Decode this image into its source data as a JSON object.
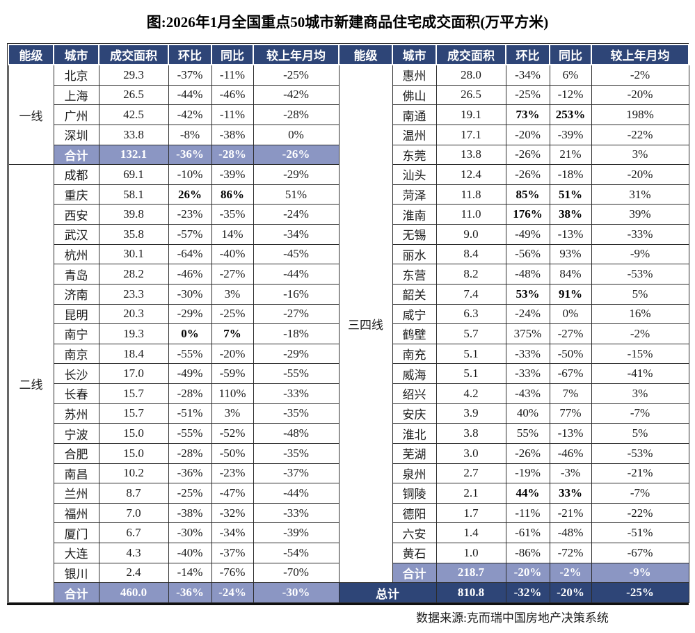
{
  "title": "图:2026年1月全国重点50城市新建商品住宅成交面积(万平方米)",
  "footer": "数据来源:克而瑞中国房地产决策系统",
  "columns": [
    "能级",
    "城市",
    "成交面积",
    "环比",
    "同比",
    "较上年月均"
  ],
  "colors": {
    "header_bg": "#2e4577",
    "header_text": "#ffffff",
    "subtotal_bg": "#8b96c3",
    "total_bg": "#2e4577",
    "grid": "#2b2b2b"
  },
  "left_table": {
    "tiers": [
      {
        "tier": "一线",
        "cities": [
          {
            "city": "北京",
            "area": "29.3",
            "mom": "-37%",
            "yoy": "-11%",
            "vs": "-25%"
          },
          {
            "city": "上海",
            "area": "26.5",
            "mom": "-44%",
            "yoy": "-46%",
            "vs": "-42%"
          },
          {
            "city": "广州",
            "area": "42.5",
            "mom": "-42%",
            "yoy": "-11%",
            "vs": "-28%"
          },
          {
            "city": "深圳",
            "area": "33.8",
            "mom": "-8%",
            "yoy": "-38%",
            "vs": "0%"
          }
        ],
        "subtotal": {
          "label": "合计",
          "area": "132.1",
          "mom": "-36%",
          "yoy": "-28%",
          "vs": "-26%"
        }
      },
      {
        "tier": "二线",
        "cities": [
          {
            "city": "成都",
            "area": "69.1",
            "mom": "-10%",
            "yoy": "-39%",
            "vs": "-29%"
          },
          {
            "city": "重庆",
            "area": "58.1",
            "mom": "26%",
            "yoy": "86%",
            "vs": "51%",
            "bold": [
              "mom",
              "yoy"
            ]
          },
          {
            "city": "西安",
            "area": "39.8",
            "mom": "-23%",
            "yoy": "-35%",
            "vs": "-24%"
          },
          {
            "city": "武汉",
            "area": "35.8",
            "mom": "-57%",
            "yoy": "14%",
            "vs": "-34%"
          },
          {
            "city": "杭州",
            "area": "30.1",
            "mom": "-64%",
            "yoy": "-40%",
            "vs": "-45%"
          },
          {
            "city": "青岛",
            "area": "28.2",
            "mom": "-46%",
            "yoy": "-27%",
            "vs": "-44%"
          },
          {
            "city": "济南",
            "area": "23.3",
            "mom": "-30%",
            "yoy": "3%",
            "vs": "-16%"
          },
          {
            "city": "昆明",
            "area": "20.3",
            "mom": "-29%",
            "yoy": "-25%",
            "vs": "-27%"
          },
          {
            "city": "南宁",
            "area": "19.3",
            "mom": "0%",
            "yoy": "7%",
            "vs": "-18%",
            "bold": [
              "mom",
              "yoy"
            ]
          },
          {
            "city": "南京",
            "area": "18.4",
            "mom": "-55%",
            "yoy": "-20%",
            "vs": "-29%"
          },
          {
            "city": "长沙",
            "area": "17.0",
            "mom": "-49%",
            "yoy": "-59%",
            "vs": "-55%"
          },
          {
            "city": "长春",
            "area": "15.7",
            "mom": "-28%",
            "yoy": "110%",
            "vs": "-33%"
          },
          {
            "city": "苏州",
            "area": "15.7",
            "mom": "-51%",
            "yoy": "3%",
            "vs": "-35%"
          },
          {
            "city": "宁波",
            "area": "15.0",
            "mom": "-55%",
            "yoy": "-52%",
            "vs": "-48%"
          },
          {
            "city": "合肥",
            "area": "15.0",
            "mom": "-28%",
            "yoy": "-50%",
            "vs": "-35%"
          },
          {
            "city": "南昌",
            "area": "10.2",
            "mom": "-36%",
            "yoy": "-23%",
            "vs": "-37%"
          },
          {
            "city": "兰州",
            "area": "8.7",
            "mom": "-25%",
            "yoy": "-47%",
            "vs": "-44%"
          },
          {
            "city": "福州",
            "area": "7.0",
            "mom": "-38%",
            "yoy": "-32%",
            "vs": "-33%"
          },
          {
            "city": "厦门",
            "area": "6.7",
            "mom": "-30%",
            "yoy": "-34%",
            "vs": "-39%"
          },
          {
            "city": "大连",
            "area": "4.3",
            "mom": "-40%",
            "yoy": "-37%",
            "vs": "-54%"
          },
          {
            "city": "银川",
            "area": "2.4",
            "mom": "-14%",
            "yoy": "-76%",
            "vs": "-70%"
          }
        ],
        "subtotal": {
          "label": "合计",
          "area": "460.0",
          "mom": "-36%",
          "yoy": "-24%",
          "vs": "-30%"
        }
      }
    ]
  },
  "right_table": {
    "tiers": [
      {
        "tier": "三四线",
        "cities": [
          {
            "city": "惠州",
            "area": "28.0",
            "mom": "-34%",
            "yoy": "6%",
            "vs": "-2%"
          },
          {
            "city": "佛山",
            "area": "26.5",
            "mom": "-25%",
            "yoy": "-12%",
            "vs": "-20%"
          },
          {
            "city": "南通",
            "area": "19.1",
            "mom": "73%",
            "yoy": "253%",
            "vs": "198%",
            "bold": [
              "mom",
              "yoy"
            ]
          },
          {
            "city": "温州",
            "area": "17.1",
            "mom": "-20%",
            "yoy": "-39%",
            "vs": "-22%"
          },
          {
            "city": "东莞",
            "area": "13.8",
            "mom": "-26%",
            "yoy": "21%",
            "vs": "3%"
          },
          {
            "city": "汕头",
            "area": "12.4",
            "mom": "-26%",
            "yoy": "-18%",
            "vs": "-20%"
          },
          {
            "city": "菏泽",
            "area": "11.8",
            "mom": "85%",
            "yoy": "51%",
            "vs": "31%",
            "bold": [
              "mom",
              "yoy"
            ]
          },
          {
            "city": "淮南",
            "area": "11.0",
            "mom": "176%",
            "yoy": "38%",
            "vs": "39%",
            "bold": [
              "mom",
              "yoy"
            ]
          },
          {
            "city": "无锡",
            "area": "9.0",
            "mom": "-49%",
            "yoy": "-13%",
            "vs": "-33%"
          },
          {
            "city": "丽水",
            "area": "8.4",
            "mom": "-56%",
            "yoy": "93%",
            "vs": "-9%"
          },
          {
            "city": "东营",
            "area": "8.2",
            "mom": "-48%",
            "yoy": "84%",
            "vs": "-53%"
          },
          {
            "city": "韶关",
            "area": "7.4",
            "mom": "53%",
            "yoy": "91%",
            "vs": "5%",
            "bold": [
              "mom",
              "yoy"
            ]
          },
          {
            "city": "咸宁",
            "area": "6.3",
            "mom": "-24%",
            "yoy": "0%",
            "vs": "16%"
          },
          {
            "city": "鹤壁",
            "area": "5.7",
            "mom": "375%",
            "yoy": "-27%",
            "vs": "-2%"
          },
          {
            "city": "南充",
            "area": "5.1",
            "mom": "-33%",
            "yoy": "-50%",
            "vs": "-15%"
          },
          {
            "city": "威海",
            "area": "5.1",
            "mom": "-33%",
            "yoy": "-67%",
            "vs": "-41%"
          },
          {
            "city": "绍兴",
            "area": "4.2",
            "mom": "-43%",
            "yoy": "7%",
            "vs": "3%"
          },
          {
            "city": "安庆",
            "area": "3.9",
            "mom": "40%",
            "yoy": "77%",
            "vs": "-7%"
          },
          {
            "city": "淮北",
            "area": "3.8",
            "mom": "55%",
            "yoy": "-13%",
            "vs": "5%"
          },
          {
            "city": "芜湖",
            "area": "3.0",
            "mom": "-26%",
            "yoy": "-46%",
            "vs": "-53%"
          },
          {
            "city": "泉州",
            "area": "2.7",
            "mom": "-19%",
            "yoy": "-3%",
            "vs": "-21%"
          },
          {
            "city": "铜陵",
            "area": "2.1",
            "mom": "44%",
            "yoy": "33%",
            "vs": "-7%",
            "bold": [
              "mom",
              "yoy"
            ]
          },
          {
            "city": "德阳",
            "area": "1.7",
            "mom": "-11%",
            "yoy": "-21%",
            "vs": "-22%"
          },
          {
            "city": "六安",
            "area": "1.4",
            "mom": "-61%",
            "yoy": "-48%",
            "vs": "-51%"
          },
          {
            "city": "黄石",
            "area": "1.0",
            "mom": "-86%",
            "yoy": "-72%",
            "vs": "-67%"
          }
        ],
        "subtotal": {
          "label": "合计",
          "area": "218.7",
          "mom": "-20%",
          "yoy": "-2%",
          "vs": "-9%"
        }
      }
    ],
    "total": {
      "label": "总计",
      "area": "810.8",
      "mom": "-32%",
      "yoy": "-20%",
      "vs": "-25%"
    }
  }
}
